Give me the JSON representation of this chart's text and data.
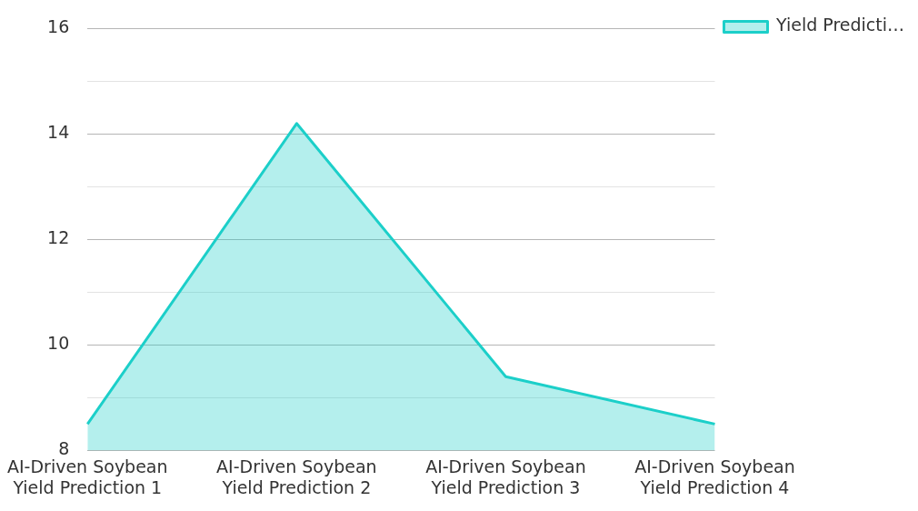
{
  "chart_data": {
    "type": "area",
    "categories": [
      "AI-Driven Soybean Yield Prediction 1",
      "AI-Driven Soybean Yield Prediction 2",
      "AI-Driven Soybean Yield Prediction 3",
      "AI-Driven Soybean Yield Prediction 4"
    ],
    "series": [
      {
        "name": "Yield Predicti…",
        "color": "#1ccfc9",
        "values": [
          8.5,
          14.2,
          9.4,
          8.5
        ]
      }
    ],
    "ylim": [
      8,
      16
    ],
    "yticks": [
      8,
      {
        "value": 9,
        "label": null
      },
      10,
      {
        "value": 11,
        "label": null
      },
      12,
      {
        "value": 13,
        "label": null
      },
      14,
      {
        "value": 15,
        "label": null
      },
      16
    ],
    "grid": "y",
    "legend": "top right",
    "marker": "none"
  }
}
